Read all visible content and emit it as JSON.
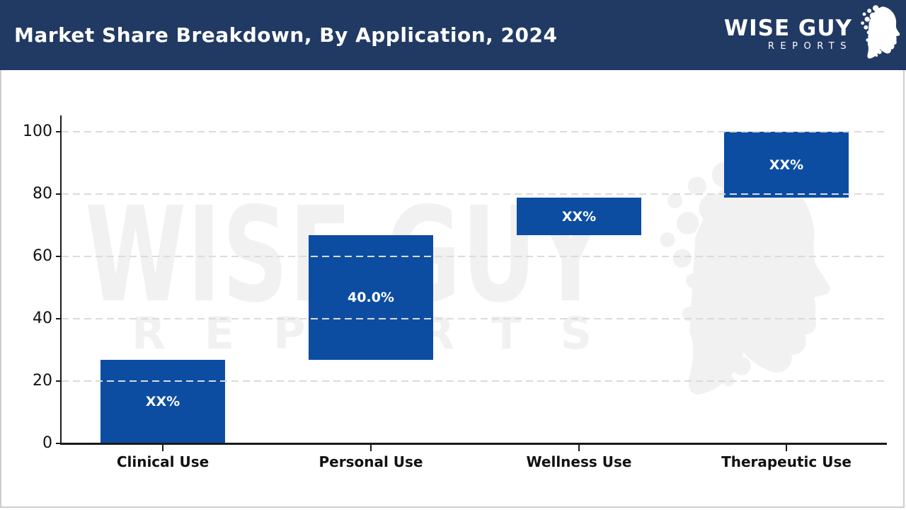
{
  "header": {
    "title": "Market Share Breakdown, By Application, 2024",
    "logo": {
      "brand": "WISE GUY",
      "sub": "REPORTS"
    }
  },
  "watermark": {
    "brand": "WISE GUY",
    "sub": "REPORTS"
  },
  "chart_data": {
    "type": "bar",
    "subtype": "floating-waterfall",
    "title": "Market Share Breakdown, By Application, 2024",
    "categories": [
      "Clinical Use",
      "Personal Use",
      "Wellness Use",
      "Therapeutic Use"
    ],
    "series": [
      {
        "name": "Market share (%)",
        "segments": [
          {
            "category": "Clinical Use",
            "start": 0,
            "end": 26.8,
            "label": "XX%"
          },
          {
            "category": "Personal Use",
            "start": 26.8,
            "end": 66.8,
            "label": "40.0%"
          },
          {
            "category": "Wellness Use",
            "start": 66.8,
            "end": 78.8,
            "label": "XX%"
          },
          {
            "category": "Therapeutic Use",
            "start": 78.8,
            "end": 100,
            "label": "XX%"
          }
        ]
      }
    ],
    "xlabel": "",
    "ylabel": "",
    "ylim": [
      0,
      100
    ],
    "yticks": [
      0,
      20,
      40,
      60,
      80,
      100
    ],
    "grid": {
      "horizontal": true,
      "style": "dashed"
    },
    "legend": "none",
    "bar_color": "#0C4DA2",
    "bar_label_color": "#FFFFFF"
  },
  "colors": {
    "header_bg": "#213A64",
    "header_text": "#FFFFFF",
    "bar": "#0C4DA2",
    "grid": "#DBDBDB",
    "axis": "#1A1A1A",
    "tick_text": "#111111",
    "watermark": "#F1F1F2",
    "frame_border": "#CFCFCF"
  }
}
